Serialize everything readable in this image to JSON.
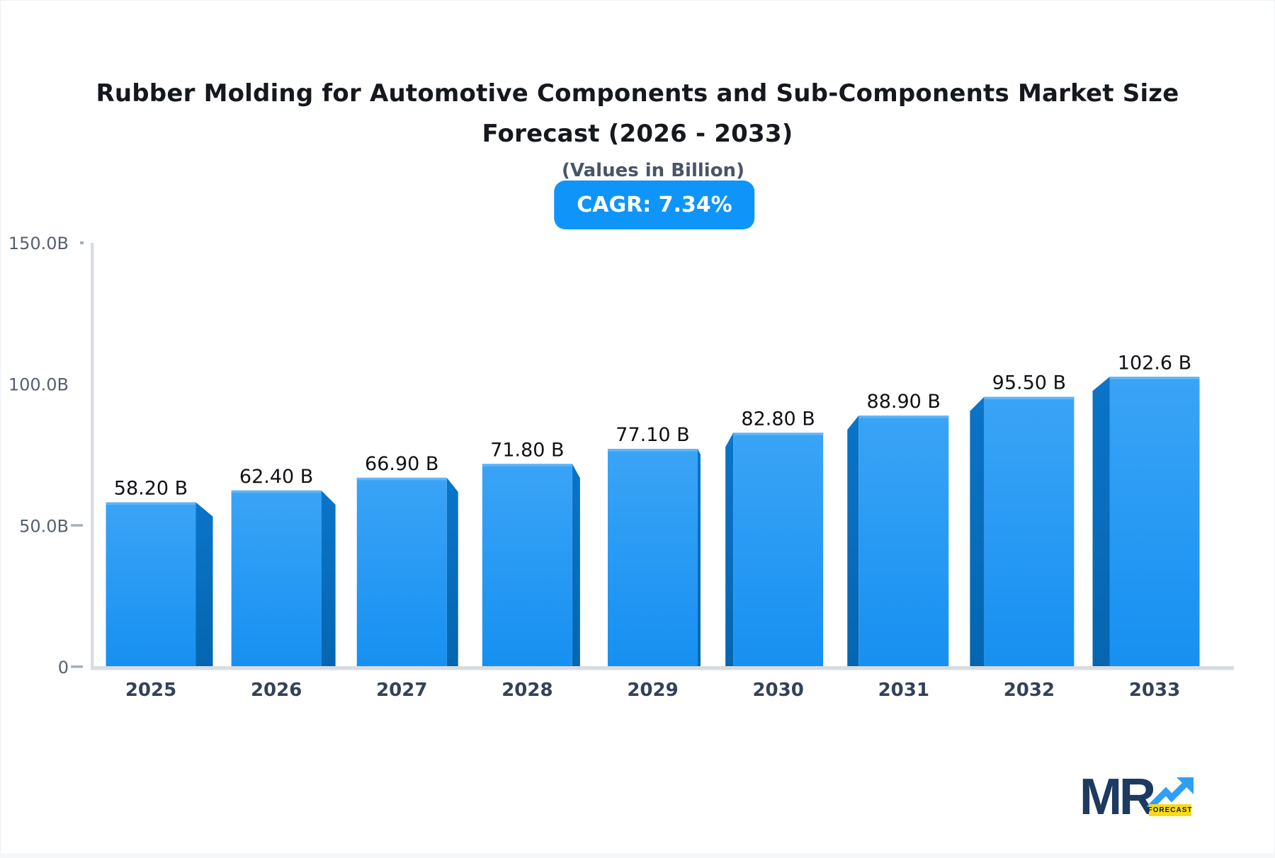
{
  "header": {
    "title_line1": "Rubber Molding for Automotive Components and Sub-Components Market Size",
    "title_line2": "Forecast (2026 - 2033)",
    "subtitle": "(Values in Billion)",
    "cagr_badge": "CAGR: 7.34%"
  },
  "chart_data": {
    "type": "bar",
    "title": "Rubber Molding for Automotive Components and Sub-Components Market Size Forecast (2026 - 2033)",
    "subtitle": "(Values in Billion)",
    "cagr": "7.34%",
    "categories": [
      "2025",
      "2026",
      "2027",
      "2028",
      "2029",
      "2030",
      "2031",
      "2032",
      "2033"
    ],
    "values": [
      58.2,
      62.4,
      66.9,
      71.8,
      77.1,
      82.8,
      88.9,
      95.5,
      102.6
    ],
    "value_labels": [
      "58.20 B",
      "62.40 B",
      "66.90 B",
      "71.80 B",
      "77.10 B",
      "82.80 B",
      "88.90 B",
      "95.50 B",
      "102.6 B"
    ],
    "y_ticks": [
      {
        "label": "0",
        "value": 0,
        "tick_style": "dash"
      },
      {
        "label": "50.0B",
        "value": 50,
        "tick_style": "dash"
      },
      {
        "label": "100.0B",
        "value": 100,
        "tick_style": "none"
      },
      {
        "label": "150.0B",
        "value": 150,
        "tick_style": "dot"
      }
    ],
    "ylim": [
      0,
      150
    ],
    "xlabel": "",
    "ylabel": "",
    "grid": false,
    "legend": false,
    "colors": {
      "bar_face_top": "#3aa4f6",
      "bar_face_bottom": "#1690f1",
      "bar_side_top": "#0b74c8",
      "bar_side_bottom": "#0566b0",
      "bar_top_highlight": "#5fb5f7",
      "axis_line": "#d9dce1",
      "tick": "#a7aeb8",
      "y_label": "#57606e",
      "x_label": "#33415a",
      "value_label": "#0f1115",
      "badge_bg": "#0f95fa",
      "badge_text": "#ffffff"
    }
  },
  "logo": {
    "text": "MR",
    "badge": "FORECAST",
    "colors": {
      "text": "#1d3a60",
      "arrow": "#2f9ff3",
      "badge_bg": "#f7da19",
      "badge_text": "#101c2e"
    }
  }
}
